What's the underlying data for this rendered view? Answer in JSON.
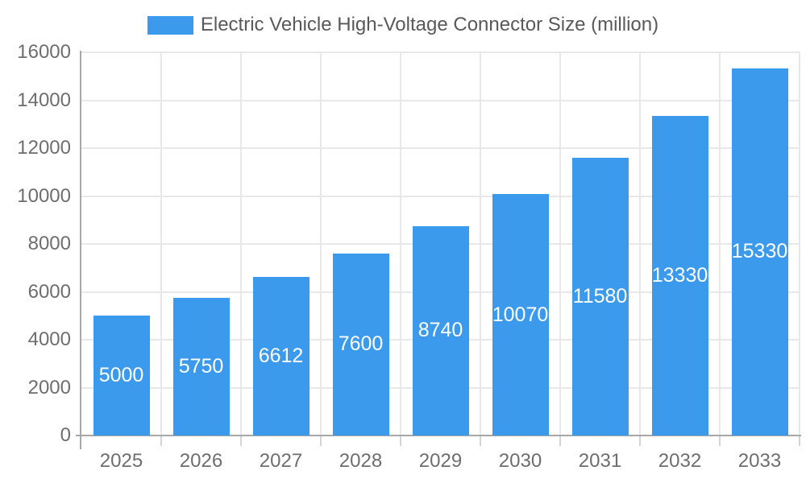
{
  "chart_data": {
    "type": "bar",
    "title": "Electric Vehicle High-Voltage Connector Size (million)",
    "categories": [
      "2025",
      "2026",
      "2027",
      "2028",
      "2029",
      "2030",
      "2031",
      "2032",
      "2033"
    ],
    "values": [
      5000,
      5750,
      6612,
      7600,
      8740,
      10070,
      11580,
      13330,
      15330
    ],
    "bar_value_labels": [
      "5000",
      "5750",
      "6612",
      "7600",
      "8740",
      "10070",
      "11580",
      "13330",
      "15330"
    ],
    "xlabel": "",
    "ylabel": "",
    "ylim": [
      0,
      16000
    ],
    "ytick_step": 2000,
    "ytick_labels": [
      "0",
      "2000",
      "4000",
      "6000",
      "8000",
      "10000",
      "12000",
      "14000",
      "16000"
    ],
    "grid": "on",
    "legend_position": "top-center",
    "value_labels_position": "inside-center"
  },
  "colors": {
    "bar": "#3B9AEC",
    "bar_label": "#FFFFFF",
    "axis_line": "#A8A8A8",
    "gridline": "#E8E8E8",
    "tick": "#D4D4D4",
    "axis_text": "#6E6E6E",
    "title_text": "#595959",
    "background": "#FFFFFF"
  }
}
